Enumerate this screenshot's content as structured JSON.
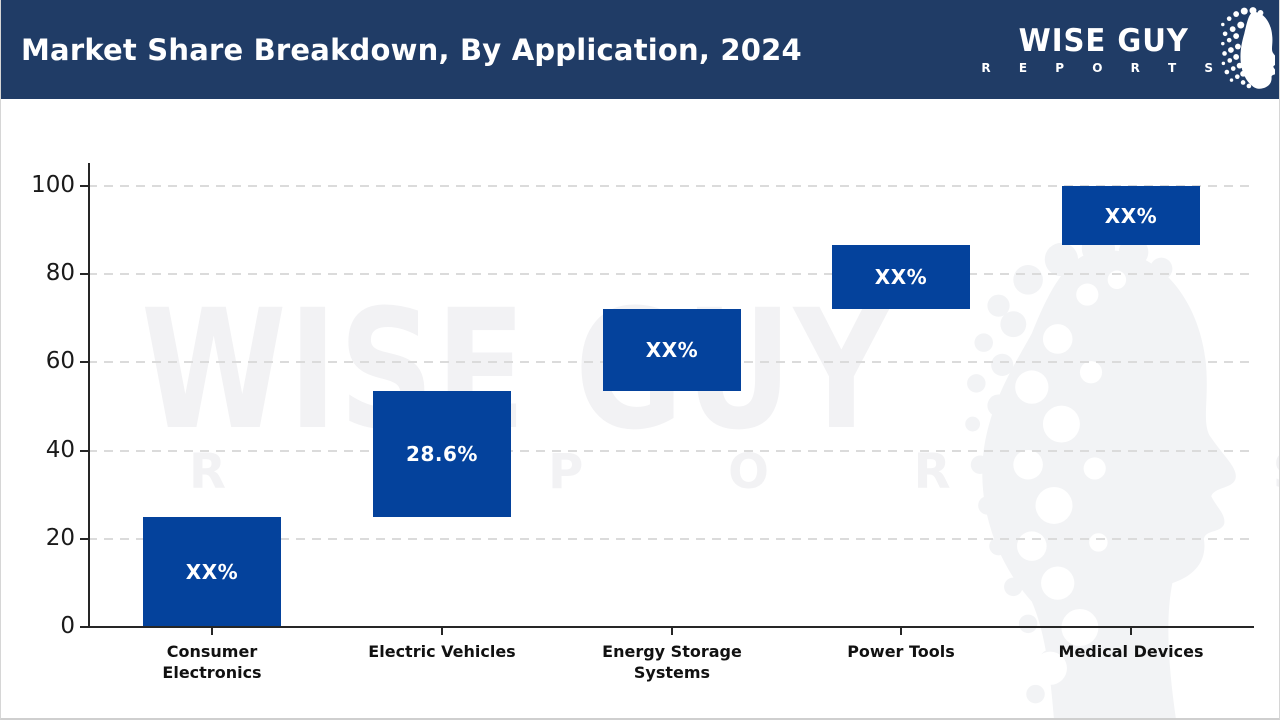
{
  "header": {
    "title": "Market Share Breakdown, By Application, 2024",
    "logo": {
      "line1": "WISE GUY",
      "line2": "R E P O R T S"
    }
  },
  "watermark": {
    "line1": "WISE GUY",
    "line2": "R E P O R T S"
  },
  "colors": {
    "header_bg": "#203c66",
    "bar_blue": "#04429c",
    "grid_gray": "#dbdbdb",
    "axis_dark": "#262626",
    "watermark_gray": "#f2f2f4",
    "label_white": "#ffffff"
  },
  "chart_data": {
    "type": "bar",
    "subtype": "waterfall",
    "title": "Market Share Breakdown, By Application, 2024",
    "categories": [
      "Consumer Electronics",
      "Electric Vehicles",
      "Energy Storage Systems",
      "Power Tools",
      "Medical Devices"
    ],
    "category_display": [
      "Consumer\nElectronics",
      "Electric Vehicles",
      "Energy Storage\nSystems",
      "Power Tools",
      "Medical Devices"
    ],
    "segments": [
      {
        "category": "Consumer Electronics",
        "start": 0,
        "end": 25,
        "value_label": "XX%"
      },
      {
        "category": "Electric Vehicles",
        "start": 25,
        "end": 53.6,
        "value_label": "28.6%"
      },
      {
        "category": "Energy Storage Systems",
        "start": 53.6,
        "end": 72.2,
        "value_label": "XX%"
      },
      {
        "category": "Power Tools",
        "start": 72.2,
        "end": 86.6,
        "value_label": "XX%"
      },
      {
        "category": "Medical Devices",
        "start": 86.6,
        "end": 100,
        "value_label": "XX%"
      }
    ],
    "yticks": [
      0,
      20,
      40,
      60,
      80,
      100
    ],
    "ylim": [
      0,
      105
    ],
    "xlabel": "",
    "ylabel": "",
    "grid": "horizontal-dashed",
    "legend": "none"
  }
}
